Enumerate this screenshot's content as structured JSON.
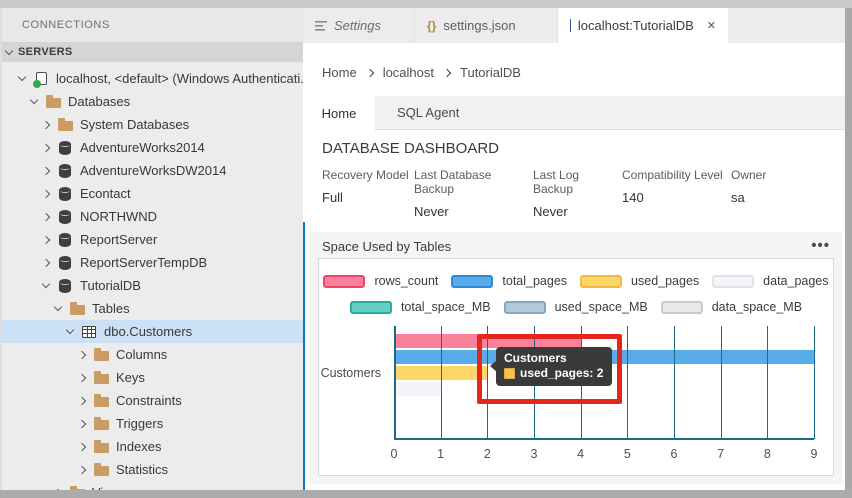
{
  "sidebar": {
    "title": "CONNECTIONS",
    "section": {
      "label": "SERVERS",
      "expanded": true
    },
    "tree": [
      {
        "label": "localhost, <default> (Windows Authenticati...",
        "level": 1,
        "icon": "server",
        "state": "expanded",
        "selected": false
      },
      {
        "label": "Databases",
        "level": 2,
        "icon": "folder",
        "state": "expanded",
        "selected": false
      },
      {
        "label": "System Databases",
        "level": 3,
        "icon": "folder",
        "state": "collapsed",
        "selected": false
      },
      {
        "label": "AdventureWorks2014",
        "level": 3,
        "icon": "database",
        "state": "collapsed",
        "selected": false
      },
      {
        "label": "AdventureWorksDW2014",
        "level": 3,
        "icon": "database",
        "state": "collapsed",
        "selected": false
      },
      {
        "label": "Econtact",
        "level": 3,
        "icon": "database",
        "state": "collapsed",
        "selected": false
      },
      {
        "label": "NORTHWND",
        "level": 3,
        "icon": "database",
        "state": "collapsed",
        "selected": false
      },
      {
        "label": "ReportServer",
        "level": 3,
        "icon": "database",
        "state": "collapsed",
        "selected": false
      },
      {
        "label": "ReportServerTempDB",
        "level": 3,
        "icon": "database",
        "state": "collapsed",
        "selected": false
      },
      {
        "label": "TutorialDB",
        "level": 3,
        "icon": "database",
        "state": "expanded",
        "selected": false
      },
      {
        "label": "Tables",
        "level": 4,
        "icon": "folder",
        "state": "expanded",
        "selected": false
      },
      {
        "label": "dbo.Customers",
        "level": 5,
        "icon": "table",
        "state": "expanded",
        "selected": true
      },
      {
        "label": "Columns",
        "level": 6,
        "icon": "folder",
        "state": "collapsed",
        "selected": false
      },
      {
        "label": "Keys",
        "level": 6,
        "icon": "folder",
        "state": "collapsed",
        "selected": false
      },
      {
        "label": "Constraints",
        "level": 6,
        "icon": "folder",
        "state": "collapsed",
        "selected": false
      },
      {
        "label": "Triggers",
        "level": 6,
        "icon": "folder",
        "state": "collapsed",
        "selected": false
      },
      {
        "label": "Indexes",
        "level": 6,
        "icon": "folder",
        "state": "collapsed",
        "selected": false
      },
      {
        "label": "Statistics",
        "level": 6,
        "icon": "folder",
        "state": "collapsed",
        "selected": false
      },
      {
        "label": "Views",
        "level": 4,
        "icon": "folder",
        "state": "collapsed",
        "selected": false
      }
    ]
  },
  "editor": {
    "tabs": [
      {
        "label": "Settings",
        "icon": "settings-list-icon",
        "italic": true,
        "active": false,
        "closable": false
      },
      {
        "label": "settings.json",
        "icon": "json-braces-icon",
        "italic": false,
        "active": false,
        "closable": false
      },
      {
        "label": "localhost:TutorialDB",
        "icon": "dashboard-icon",
        "italic": false,
        "active": true,
        "closable": true
      }
    ],
    "braces_glyph": "{}",
    "close_glyph": "✕",
    "breadcrumb": [
      "Home",
      "localhost",
      "TutorialDB"
    ],
    "page_tabs": [
      {
        "label": "Home",
        "active": true
      },
      {
        "label": "SQL Agent",
        "active": false
      }
    ],
    "dashboard_title": "DATABASE DASHBOARD",
    "properties": [
      {
        "label": "Recovery Model",
        "value": "Full"
      },
      {
        "label": "Last Database Backup",
        "value": "Never"
      },
      {
        "label": "Last Log Backup",
        "value": "Never"
      },
      {
        "label": "Compatibility Level",
        "value": "140"
      },
      {
        "label": "Owner",
        "value": "sa"
      }
    ]
  },
  "widget": {
    "title": "Space Used by Tables",
    "menu_glyph": "•••"
  },
  "chart_data": {
    "type": "bar",
    "orientation": "horizontal",
    "title": "Space Used by Tables",
    "categories": [
      "Customers"
    ],
    "xlim": [
      0,
      9
    ],
    "x_ticks": [
      0,
      1,
      2,
      3,
      4,
      5,
      6,
      7,
      8,
      9
    ],
    "grid": true,
    "legend_position": "top",
    "grid_color": "#1E6A85",
    "series": [
      {
        "name": "rows_count",
        "value": 4,
        "fill": "#F9819B",
        "stroke": "#F0436F"
      },
      {
        "name": "total_pages",
        "value": 9,
        "fill": "#58ACE9",
        "stroke": "#2A8CDE"
      },
      {
        "name": "used_pages",
        "value": 2,
        "fill": "#FCD767",
        "stroke": "#F1BA3E"
      },
      {
        "name": "data_pages",
        "value": 1,
        "fill": "#F4F4FA",
        "stroke": "#E2E2EA"
      },
      {
        "name": "total_space_MB",
        "value": null,
        "fill": "#62CFC2",
        "stroke": "#2BAB9B"
      },
      {
        "name": "used_space_MB",
        "value": null,
        "fill": "#B1C9DA",
        "stroke": "#82A8C2"
      },
      {
        "name": "data_space_MB",
        "value": null,
        "fill": "#E9E9EC",
        "stroke": "#CACACE"
      }
    ],
    "tooltip": {
      "title": "Customers",
      "series": "used_pages",
      "value": 2,
      "text": "used_pages: 2",
      "swatch_color": "#F0C352"
    },
    "annotation": {
      "shape": "rect",
      "color": "#E5261C",
      "purpose": "highlight-tooltip"
    }
  }
}
